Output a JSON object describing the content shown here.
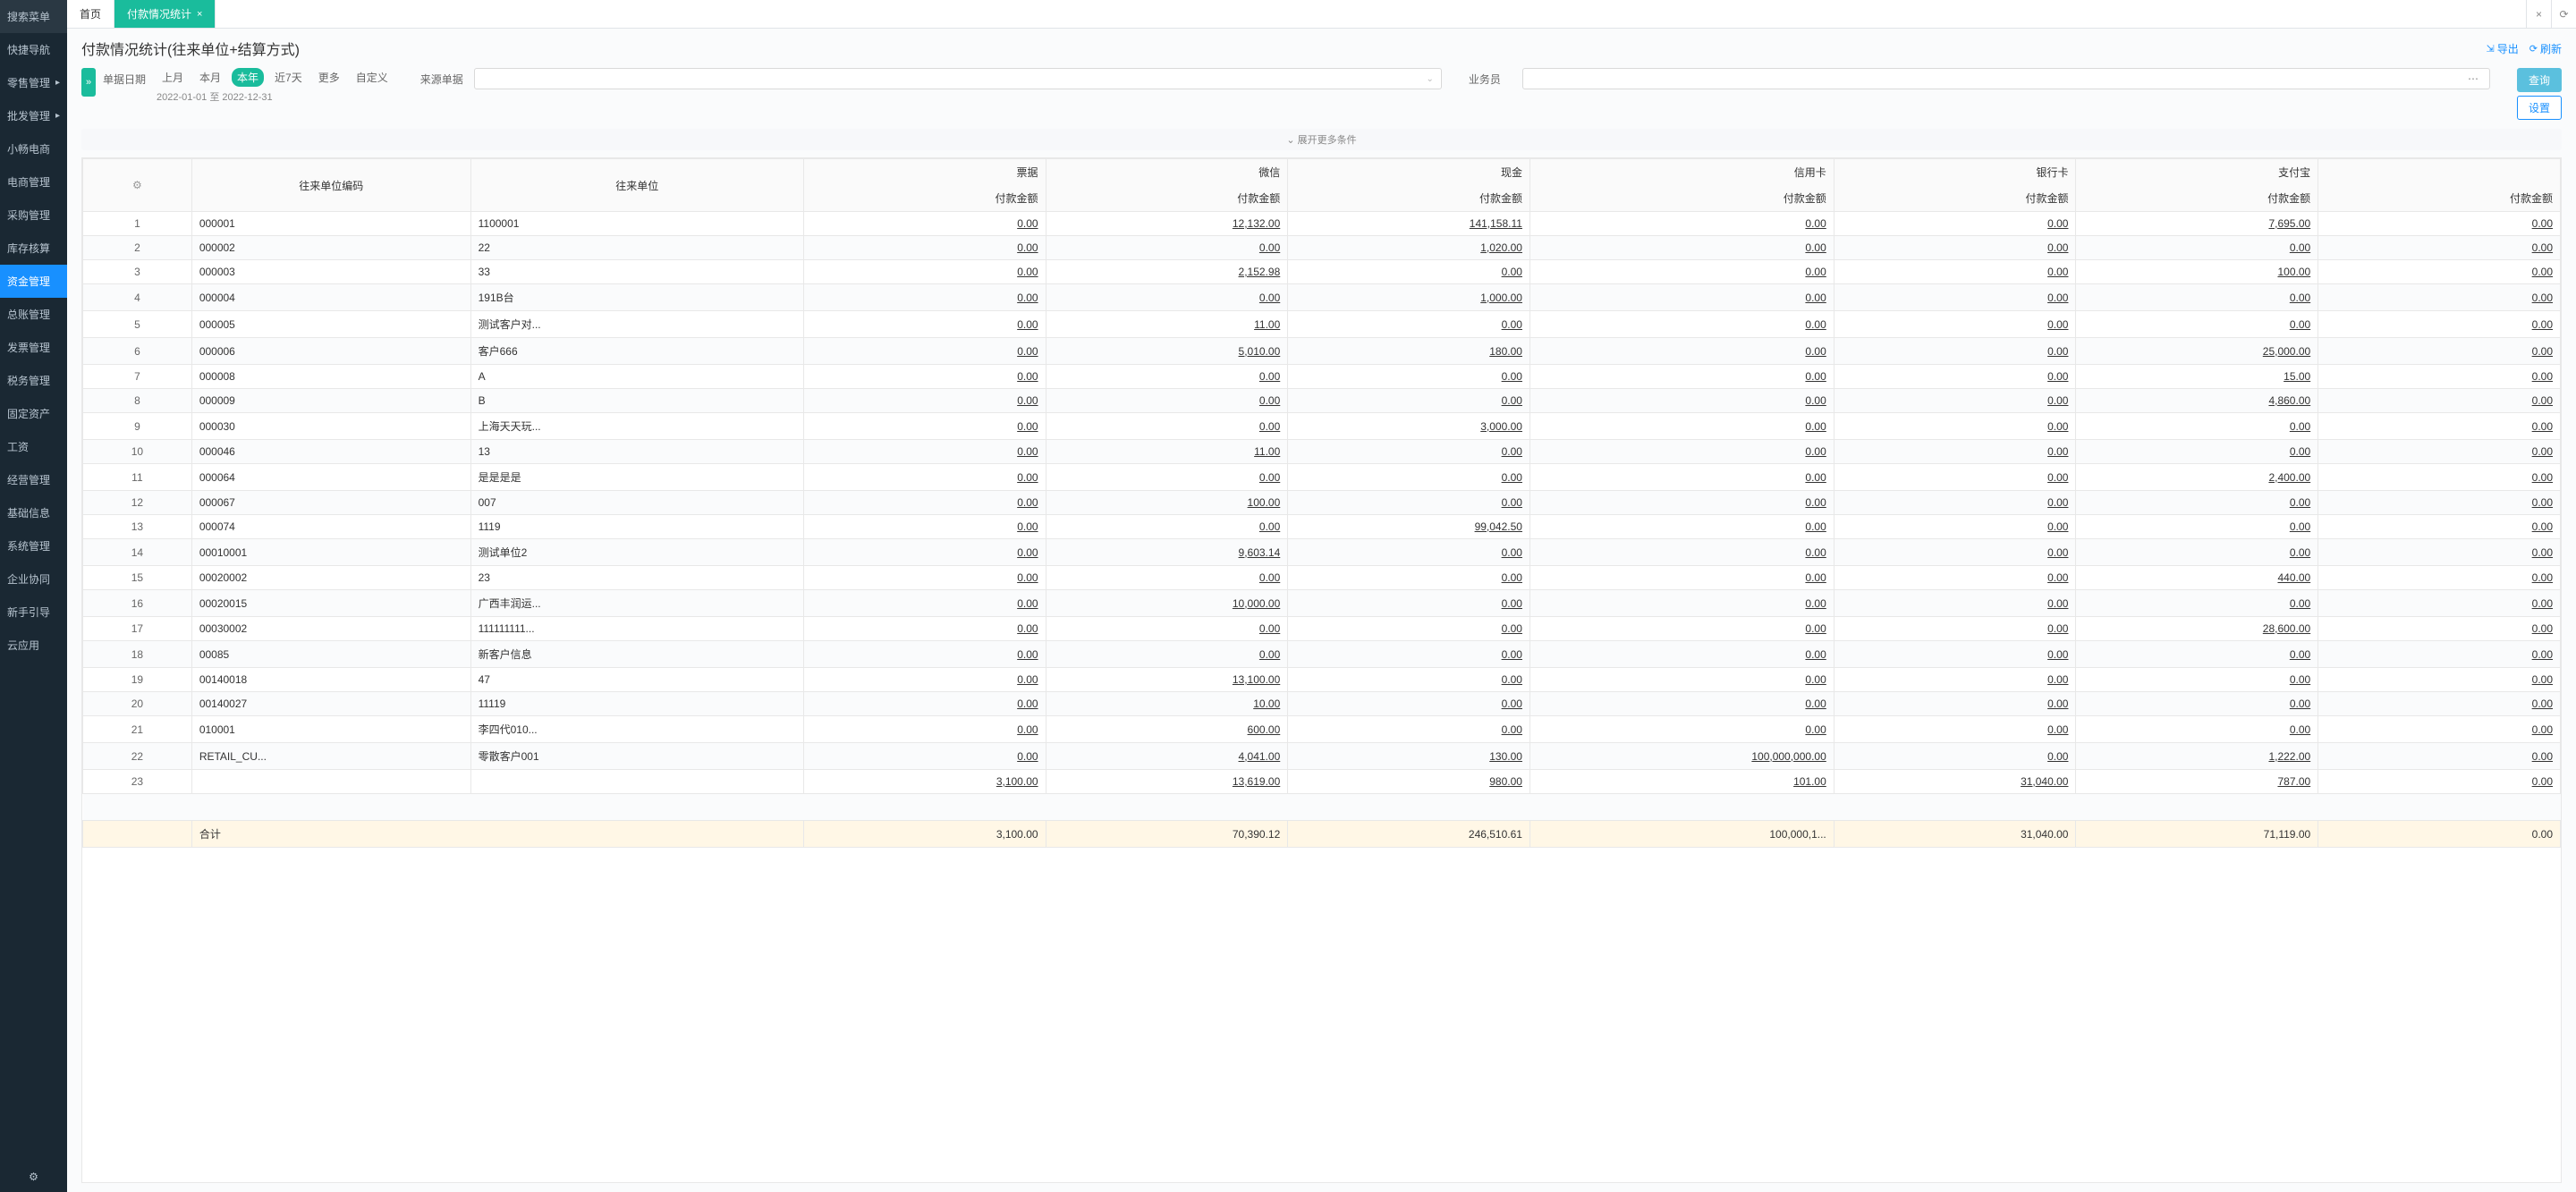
{
  "sidebar": {
    "items": [
      {
        "label": "搜索菜单",
        "arrow": false
      },
      {
        "label": "快捷导航",
        "arrow": false
      },
      {
        "label": "零售管理",
        "arrow": true
      },
      {
        "label": "批发管理",
        "arrow": true
      },
      {
        "label": "小畅电商",
        "arrow": false
      },
      {
        "label": "电商管理",
        "arrow": false
      },
      {
        "label": "采购管理",
        "arrow": false
      },
      {
        "label": "库存核算",
        "arrow": false
      },
      {
        "label": "资金管理",
        "arrow": false,
        "active": true
      },
      {
        "label": "总账管理",
        "arrow": false
      },
      {
        "label": "发票管理",
        "arrow": false
      },
      {
        "label": "税务管理",
        "arrow": false
      },
      {
        "label": "固定资产",
        "arrow": false
      },
      {
        "label": "工资",
        "arrow": false
      },
      {
        "label": "经营管理",
        "arrow": false
      },
      {
        "label": "基础信息",
        "arrow": false
      },
      {
        "label": "系统管理",
        "arrow": false
      },
      {
        "label": "企业协同",
        "arrow": false
      },
      {
        "label": "新手引导",
        "arrow": false
      },
      {
        "label": "云应用",
        "arrow": false
      }
    ]
  },
  "tabs": [
    {
      "label": "首页",
      "closable": false
    },
    {
      "label": "付款情况统计",
      "closable": true,
      "active": true
    }
  ],
  "header": {
    "title": "付款情况统计(往来单位+结算方式)",
    "export": "导出",
    "refresh": "刷新"
  },
  "filters": {
    "dateLabel": "单据日期",
    "dateOpts": [
      "上月",
      "本月",
      "本年",
      "近7天",
      "更多",
      "自定义"
    ],
    "dateActive": 2,
    "dateRange": "2022-01-01 至 2022-12-31",
    "source": "来源单据",
    "salesman": "业务员",
    "queryBtn": "查询",
    "settingBtn": "设置",
    "expand": "展开更多条件"
  },
  "table": {
    "colGroups": [
      "票据",
      "微信",
      "现金",
      "信用卡",
      "银行卡",
      "支付宝",
      ""
    ],
    "subHeader": "付款金额",
    "codeHeader": "往来单位编码",
    "nameHeader": "往来单位",
    "totalsLabel": "合计",
    "rows": [
      {
        "n": 1,
        "code": "000001",
        "name": "1100001",
        "v": [
          "0.00",
          "12,132.00",
          "141,158.11",
          "0.00",
          "0.00",
          "7,695.00",
          "0.00"
        ]
      },
      {
        "n": 2,
        "code": "000002",
        "name": "22",
        "v": [
          "0.00",
          "0.00",
          "1,020.00",
          "0.00",
          "0.00",
          "0.00",
          "0.00"
        ]
      },
      {
        "n": 3,
        "code": "000003",
        "name": "33",
        "v": [
          "0.00",
          "2,152.98",
          "0.00",
          "0.00",
          "0.00",
          "100.00",
          "0.00"
        ]
      },
      {
        "n": 4,
        "code": "000004",
        "name": "191B台",
        "v": [
          "0.00",
          "0.00",
          "1,000.00",
          "0.00",
          "0.00",
          "0.00",
          "0.00"
        ]
      },
      {
        "n": 5,
        "code": "000005",
        "name": "测试客户对...",
        "v": [
          "0.00",
          "11.00",
          "0.00",
          "0.00",
          "0.00",
          "0.00",
          "0.00"
        ]
      },
      {
        "n": 6,
        "code": "000006",
        "name": "客户666",
        "v": [
          "0.00",
          "5,010.00",
          "180.00",
          "0.00",
          "0.00",
          "25,000.00",
          "0.00"
        ]
      },
      {
        "n": 7,
        "code": "000008",
        "name": "A",
        "v": [
          "0.00",
          "0.00",
          "0.00",
          "0.00",
          "0.00",
          "15.00",
          "0.00"
        ]
      },
      {
        "n": 8,
        "code": "000009",
        "name": "B",
        "v": [
          "0.00",
          "0.00",
          "0.00",
          "0.00",
          "0.00",
          "4,860.00",
          "0.00"
        ]
      },
      {
        "n": 9,
        "code": "000030",
        "name": "上海天天玩...",
        "v": [
          "0.00",
          "0.00",
          "3,000.00",
          "0.00",
          "0.00",
          "0.00",
          "0.00"
        ]
      },
      {
        "n": 10,
        "code": "000046",
        "name": "13",
        "v": [
          "0.00",
          "11.00",
          "0.00",
          "0.00",
          "0.00",
          "0.00",
          "0.00"
        ]
      },
      {
        "n": 11,
        "code": "000064",
        "name": "是是是是",
        "v": [
          "0.00",
          "0.00",
          "0.00",
          "0.00",
          "0.00",
          "2,400.00",
          "0.00"
        ]
      },
      {
        "n": 12,
        "code": "000067",
        "name": "007",
        "v": [
          "0.00",
          "100.00",
          "0.00",
          "0.00",
          "0.00",
          "0.00",
          "0.00"
        ]
      },
      {
        "n": 13,
        "code": "000074",
        "name": "1119",
        "v": [
          "0.00",
          "0.00",
          "99,042.50",
          "0.00",
          "0.00",
          "0.00",
          "0.00"
        ]
      },
      {
        "n": 14,
        "code": "00010001",
        "name": "测试单位2",
        "v": [
          "0.00",
          "9,603.14",
          "0.00",
          "0.00",
          "0.00",
          "0.00",
          "0.00"
        ]
      },
      {
        "n": 15,
        "code": "00020002",
        "name": "23",
        "v": [
          "0.00",
          "0.00",
          "0.00",
          "0.00",
          "0.00",
          "440.00",
          "0.00"
        ]
      },
      {
        "n": 16,
        "code": "00020015",
        "name": "广西丰润运...",
        "v": [
          "0.00",
          "10,000.00",
          "0.00",
          "0.00",
          "0.00",
          "0.00",
          "0.00"
        ]
      },
      {
        "n": 17,
        "code": "00030002",
        "name": "111111111...",
        "v": [
          "0.00",
          "0.00",
          "0.00",
          "0.00",
          "0.00",
          "28,600.00",
          "0.00"
        ]
      },
      {
        "n": 18,
        "code": "00085",
        "name": "新客户信息",
        "v": [
          "0.00",
          "0.00",
          "0.00",
          "0.00",
          "0.00",
          "0.00",
          "0.00"
        ]
      },
      {
        "n": 19,
        "code": "00140018",
        "name": "47",
        "v": [
          "0.00",
          "13,100.00",
          "0.00",
          "0.00",
          "0.00",
          "0.00",
          "0.00"
        ]
      },
      {
        "n": 20,
        "code": "00140027",
        "name": "11119",
        "v": [
          "0.00",
          "10.00",
          "0.00",
          "0.00",
          "0.00",
          "0.00",
          "0.00"
        ]
      },
      {
        "n": 21,
        "code": "010001",
        "name": "李四代010...",
        "v": [
          "0.00",
          "600.00",
          "0.00",
          "0.00",
          "0.00",
          "0.00",
          "0.00"
        ]
      },
      {
        "n": 22,
        "code": "RETAIL_CU...",
        "name": "零散客户001",
        "v": [
          "0.00",
          "4,041.00",
          "130.00",
          "100,000,000.00",
          "0.00",
          "1,222.00",
          "0.00"
        ]
      },
      {
        "n": 23,
        "code": "",
        "name": "",
        "v": [
          "3,100.00",
          "13,619.00",
          "980.00",
          "101.00",
          "31,040.00",
          "787.00",
          "0.00"
        ]
      }
    ],
    "totals": [
      "3,100.00",
      "70,390.12",
      "246,510.61",
      "100,000,1...",
      "31,040.00",
      "71,119.00",
      "0.00"
    ]
  }
}
